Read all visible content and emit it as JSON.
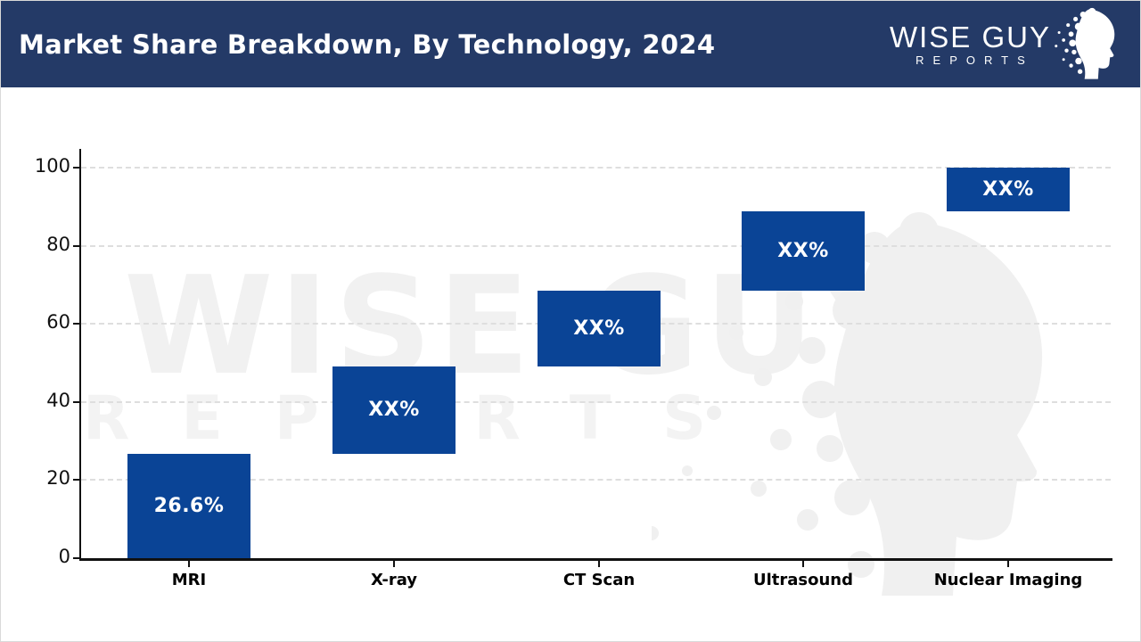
{
  "header": {
    "title": "Market Share Breakdown, By Technology, 2024",
    "bg_color": "#243a67",
    "logo": {
      "wordmark": "WISE GUY",
      "subtext": "REPORTS"
    }
  },
  "watermark": {
    "line1": "WISE GUY",
    "line2": "REPORTS"
  },
  "chart_data": {
    "type": "bar",
    "subtype": "waterfall-floating-bars",
    "title": "Market Share Breakdown, By Technology, 2024",
    "categories": [
      "MRI",
      "X-ray",
      "CT Scan",
      "Ultrasound",
      "Nuclear Imaging"
    ],
    "segments": [
      {
        "category": "MRI",
        "start": 0,
        "end": 26.6,
        "label": "26.6%"
      },
      {
        "category": "X-ray",
        "start": 26.6,
        "end": 49.2,
        "label": "XX%"
      },
      {
        "category": "CT Scan",
        "start": 49.2,
        "end": 68.6,
        "label": "XX%"
      },
      {
        "category": "Ultrasound",
        "start": 68.6,
        "end": 88.8,
        "label": "XX%"
      },
      {
        "category": "Nuclear Imaging",
        "start": 88.8,
        "end": 100,
        "label": "XX%"
      }
    ],
    "bar_color": "#0a4496",
    "bar_label_color": "#ffffff",
    "xlabel": "",
    "ylabel": "",
    "ylim": [
      0,
      100
    ],
    "yticks": [
      0,
      20,
      40,
      60,
      80,
      100
    ],
    "grid": "horizontal-dashed",
    "legend": "none"
  }
}
